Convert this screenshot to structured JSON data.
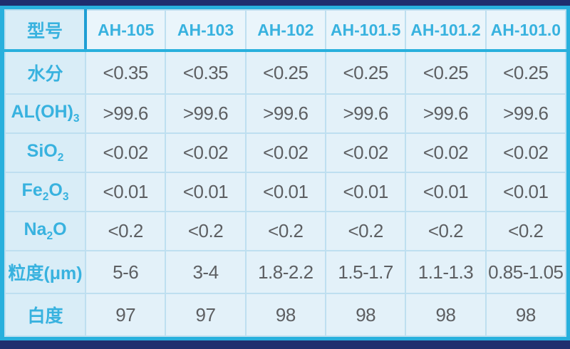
{
  "colors": {
    "navy_band": "#1f2e6e",
    "frame_cyan": "#28b0dd",
    "accent_divider": "#1f9ed4",
    "thin_grid": "#bedff0",
    "header_bg": "#eaf5fb",
    "label_col_bg": "#d9edf7",
    "cell_bg": "#e3f1f9",
    "heading_text": "#38b2df",
    "value_text": "#5d5f62"
  },
  "chart_data": {
    "type": "table",
    "title": "",
    "header": {
      "corner": "型号",
      "models": [
        "AH-105",
        "AH-103",
        "AH-102",
        "AH-101.5",
        "AH-101.2",
        "AH-101.0"
      ]
    },
    "rows": [
      {
        "label_text": "水分",
        "label_parts": [
          {
            "text": "水分",
            "sub": false
          }
        ],
        "values": [
          "<0.35",
          "<0.35",
          "<0.25",
          "<0.25",
          "<0.25",
          "<0.25"
        ]
      },
      {
        "label_text": "AL(OH)3",
        "label_parts": [
          {
            "text": "AL(OH)",
            "sub": false
          },
          {
            "text": "3",
            "sub": true
          }
        ],
        "values": [
          ">99.6",
          ">99.6",
          ">99.6",
          ">99.6",
          ">99.6",
          ">99.6"
        ]
      },
      {
        "label_text": "SiO2",
        "label_parts": [
          {
            "text": "SiO",
            "sub": false
          },
          {
            "text": "2",
            "sub": true
          }
        ],
        "values": [
          "<0.02",
          "<0.02",
          "<0.02",
          "<0.02",
          "<0.02",
          "<0.02"
        ]
      },
      {
        "label_text": "Fe2O3",
        "label_parts": [
          {
            "text": "Fe",
            "sub": false
          },
          {
            "text": "2",
            "sub": true
          },
          {
            "text": "O",
            "sub": false
          },
          {
            "text": "3",
            "sub": true
          }
        ],
        "values": [
          "<0.01",
          "<0.01",
          "<0.01",
          "<0.01",
          "<0.01",
          "<0.01"
        ]
      },
      {
        "label_text": "Na2O",
        "label_parts": [
          {
            "text": "Na",
            "sub": false
          },
          {
            "text": "2",
            "sub": true
          },
          {
            "text": "O",
            "sub": false
          }
        ],
        "values": [
          "<0.2",
          "<0.2",
          "<0.2",
          "<0.2",
          "<0.2",
          "<0.2"
        ]
      },
      {
        "label_text": "粒度(μm)",
        "label_parts": [
          {
            "text": "粒度(μm)",
            "sub": false
          }
        ],
        "values": [
          "5-6",
          "3-4",
          "1.8-2.2",
          "1.5-1.7",
          "1.1-1.3",
          "0.85-1.05"
        ]
      },
      {
        "label_text": "白度",
        "label_parts": [
          {
            "text": "白度",
            "sub": false
          }
        ],
        "values": [
          "97",
          "97",
          "98",
          "98",
          "98",
          "98"
        ]
      }
    ]
  }
}
